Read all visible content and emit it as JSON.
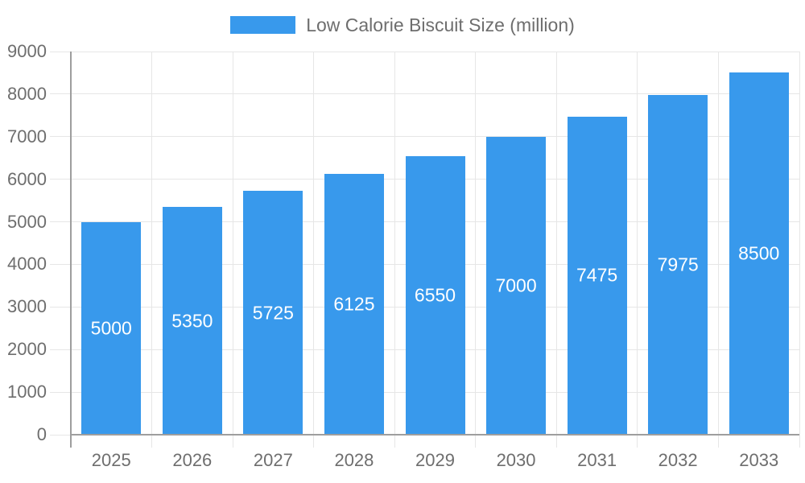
{
  "chart_data": {
    "type": "bar",
    "title": "",
    "legend": {
      "label": "Low Calorie Biscuit Size (million)",
      "position": "top"
    },
    "categories": [
      "2025",
      "2026",
      "2027",
      "2028",
      "2029",
      "2030",
      "2031",
      "2032",
      "2033"
    ],
    "series": [
      {
        "name": "Low Calorie Biscuit Size (million)",
        "values": [
          5000,
          5350,
          5725,
          6125,
          6550,
          7000,
          7475,
          7975,
          8500
        ]
      }
    ],
    "value_labels": [
      5000,
      5350,
      5725,
      6125,
      6550,
      7000,
      7475,
      7975,
      8500
    ],
    "value_label_position": "inside-center",
    "xlabel": "",
    "ylabel": "",
    "ylim": [
      0,
      9000
    ],
    "ytick_step": 1000,
    "y_ticks": [
      0,
      1000,
      2000,
      3000,
      4000,
      5000,
      6000,
      7000,
      8000,
      9000
    ],
    "grid": "horizontal-and-vertical",
    "colors": {
      "bar": "#3899ec",
      "bar_label": "#ffffff",
      "axis_text": "#6e6e6e",
      "legend_text": "#6e6e6e",
      "axis_line": "#9e9e9e",
      "gridline": "#e6e6e6",
      "background": "#ffffff"
    }
  }
}
